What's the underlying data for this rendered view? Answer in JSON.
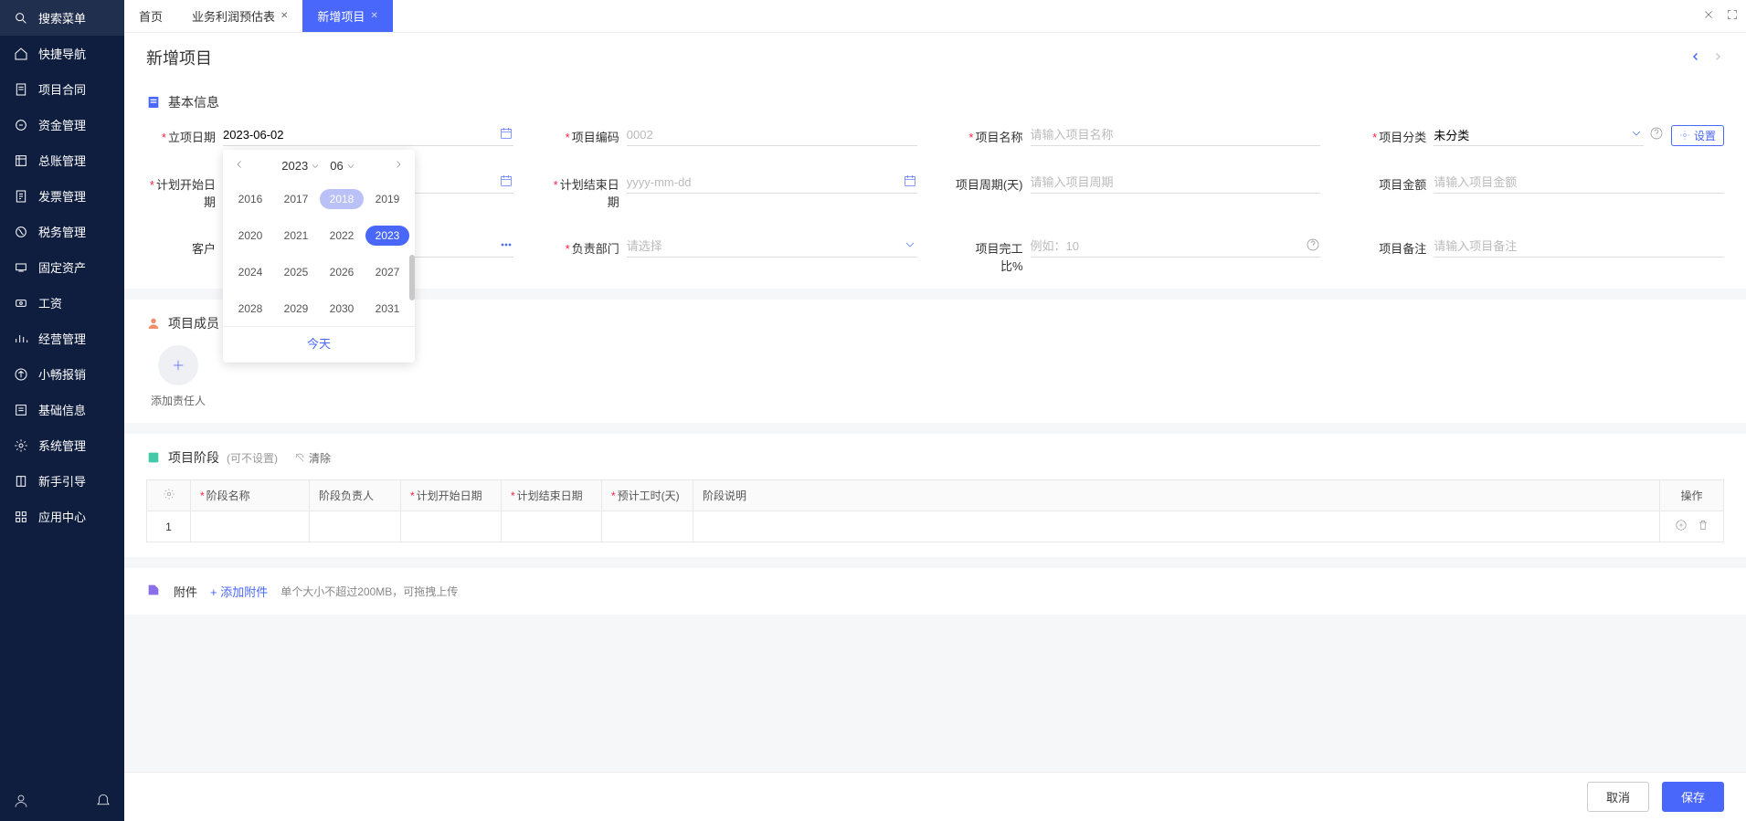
{
  "sidebar": {
    "items": [
      {
        "label": "搜索菜单",
        "icon": "search"
      },
      {
        "label": "快捷导航",
        "icon": "home"
      },
      {
        "label": "项目合同",
        "icon": "file"
      },
      {
        "label": "资金管理",
        "icon": "wallet"
      },
      {
        "label": "总账管理",
        "icon": "ledger"
      },
      {
        "label": "发票管理",
        "icon": "invoice"
      },
      {
        "label": "税务管理",
        "icon": "tax"
      },
      {
        "label": "固定资产",
        "icon": "asset"
      },
      {
        "label": "工资",
        "icon": "salary"
      },
      {
        "label": "经营管理",
        "icon": "mgmt"
      },
      {
        "label": "小畅报销",
        "icon": "reimburse"
      },
      {
        "label": "基础信息",
        "icon": "info"
      },
      {
        "label": "系统管理",
        "icon": "system"
      },
      {
        "label": "新手引导",
        "icon": "guide"
      },
      {
        "label": "应用中心",
        "icon": "apps"
      }
    ]
  },
  "tabs": {
    "items": [
      {
        "label": "首页",
        "closable": false,
        "active": false
      },
      {
        "label": "业务利润预估表",
        "closable": true,
        "active": false
      },
      {
        "label": "新增项目",
        "closable": true,
        "active": true
      }
    ]
  },
  "page": {
    "title": "新增项目"
  },
  "sections": {
    "basic": {
      "title": "基本信息",
      "icon_color": "#4a67fb"
    },
    "members": {
      "title": "项目成员",
      "icon_color": "#f08f6a"
    },
    "stages": {
      "title": "项目阶段",
      "hint": "(可不设置)",
      "clear": "清除",
      "icon_color": "#43c9a5"
    },
    "attachments": {
      "title": "附件",
      "icon_color": "#8b6fe8"
    }
  },
  "form": {
    "project_date": {
      "label": "立项日期",
      "value": "2023-06-02",
      "required": true
    },
    "project_code": {
      "label": "项目编码",
      "value": "0002",
      "required": true
    },
    "project_name": {
      "label": "项目名称",
      "placeholder": "请输入项目名称",
      "required": true
    },
    "project_category": {
      "label": "项目分类",
      "value": "未分类",
      "required": true,
      "config_btn": "设置"
    },
    "plan_start": {
      "label": "计划开始日期",
      "placeholder": "yyyy-mm-dd",
      "required": true
    },
    "plan_end": {
      "label": "计划结束日期",
      "placeholder": "yyyy-mm-dd",
      "required": true
    },
    "period": {
      "label": "项目周期(天)",
      "placeholder": "请输入项目周期"
    },
    "amount": {
      "label": "项目金额",
      "placeholder": "请输入项目金额"
    },
    "customer": {
      "label": "客户",
      "placeholder": ""
    },
    "dept": {
      "label": "负责部门",
      "placeholder": "请选择",
      "required": true
    },
    "completion": {
      "label": "项目完工比%",
      "placeholder": "例如：10"
    },
    "remark": {
      "label": "项目备注",
      "placeholder": "请输入项目备注"
    }
  },
  "datepicker": {
    "year_label": "2023",
    "month_label": "06",
    "years": [
      "2016",
      "2017",
      "2018",
      "2019",
      "2020",
      "2021",
      "2022",
      "2023",
      "2024",
      "2025",
      "2026",
      "2027",
      "2028",
      "2029",
      "2030",
      "2031"
    ],
    "hover_year": "2018",
    "selected_year": "2023",
    "today_label": "今天",
    "colors": {
      "primary": "#4a67fb",
      "hover": "#b9c1f7"
    }
  },
  "members": {
    "add_label": "添加责任人"
  },
  "stage_table": {
    "columns": [
      "阶段名称",
      "阶段负责人",
      "计划开始日期",
      "计划结束日期",
      "预计工时(天)",
      "阶段说明",
      "操作"
    ],
    "required": [
      true,
      false,
      true,
      true,
      true,
      false,
      false
    ],
    "row_index": "1"
  },
  "attachments": {
    "add_label": "+ 添加附件",
    "hint": "单个大小不超过200MB，可拖拽上传"
  },
  "footer": {
    "cancel": "取消",
    "save": "保存"
  }
}
